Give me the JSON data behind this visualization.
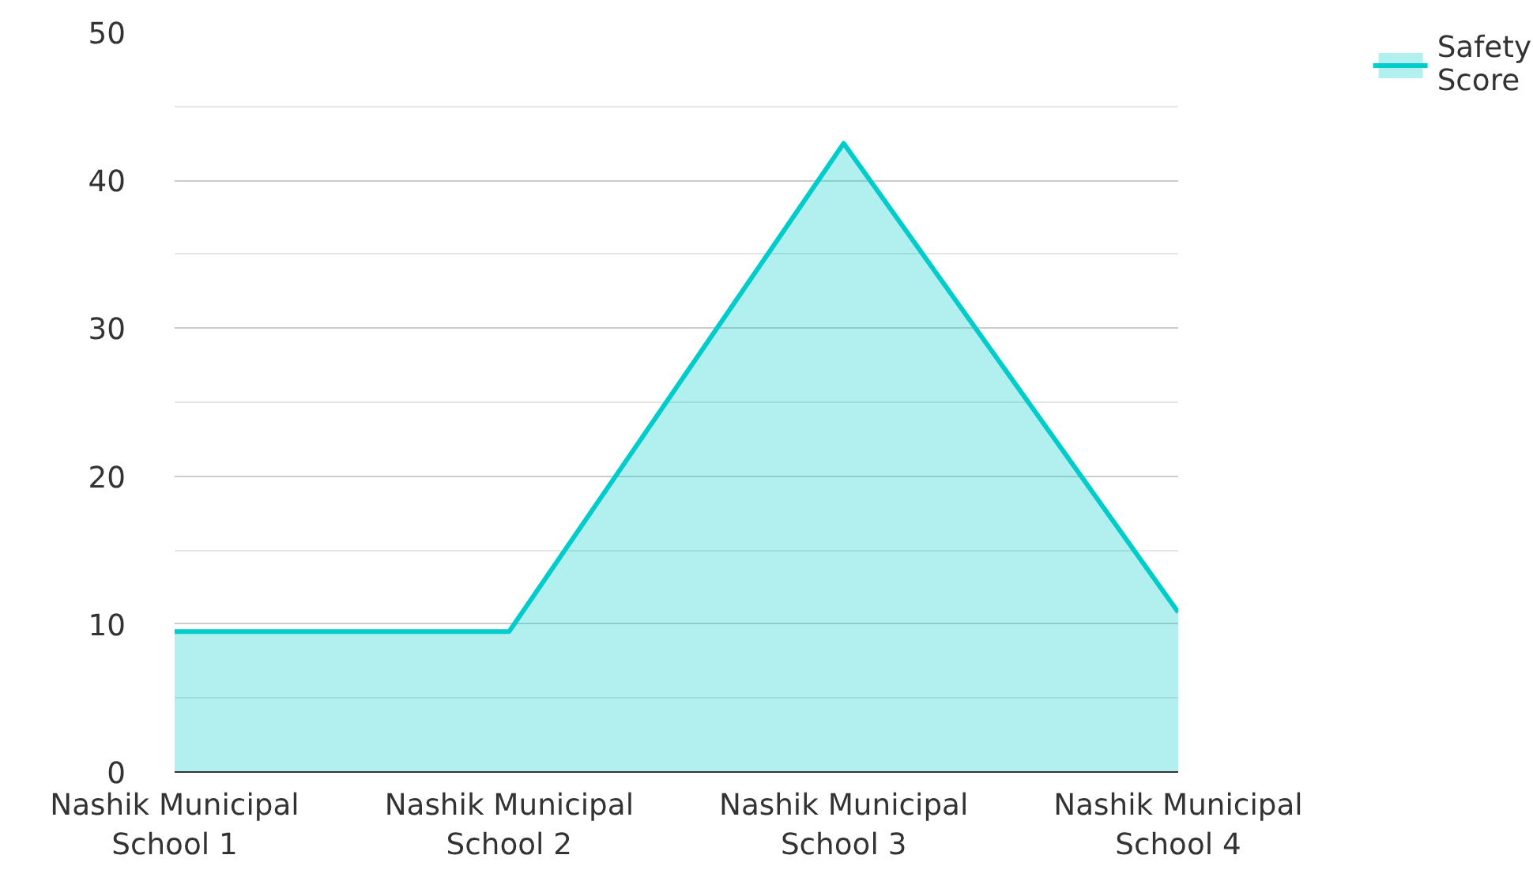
{
  "chart_data": {
    "type": "area",
    "categories": [
      "Nashik Municipal School 1",
      "Nashik Municipal School 2",
      "Nashik Municipal School 3",
      "Nashik Municipal School 4"
    ],
    "series": [
      {
        "name": "Safety Score",
        "color": "#00cccc",
        "values": [
          9.5,
          9.5,
          42.5,
          10.8
        ]
      }
    ],
    "ylim": [
      0,
      50
    ],
    "yticks": [
      0,
      10,
      20,
      30,
      40,
      50
    ],
    "grid": "y",
    "legend": "top right"
  }
}
